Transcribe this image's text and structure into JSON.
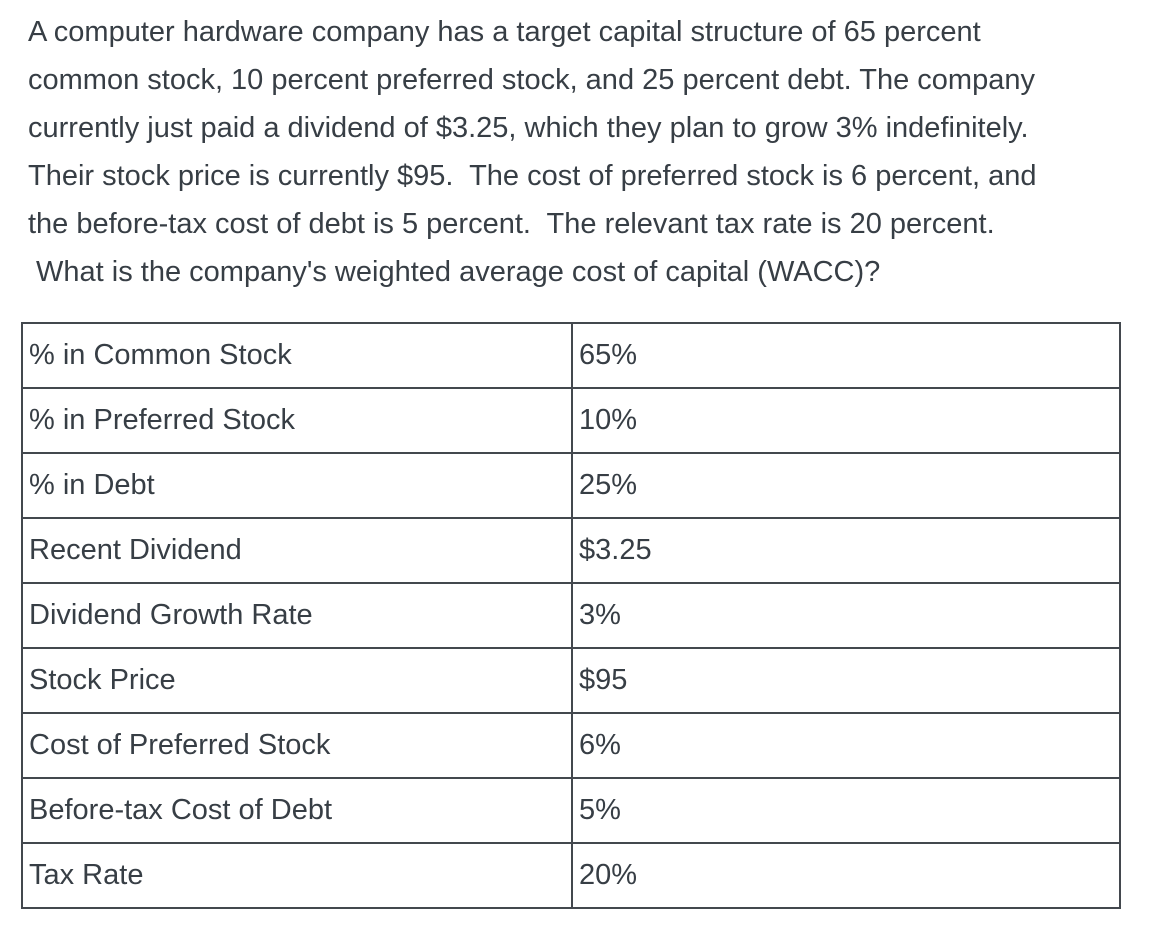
{
  "colors": {
    "text": "#373E45",
    "table_border": "#43484E",
    "background": "#FFFFFF"
  },
  "question": {
    "lines": [
      "A computer hardware company has a target capital structure of 65 percent",
      "common stock, 10 percent preferred stock, and 25 percent debt. The company",
      "currently just paid a dividend of $3.25, which they plan to grow 3% indefinitely.",
      "Their stock price is currently $95.  The cost of preferred stock is 6 percent, and",
      "the before-tax cost of debt is 5 percent.  The relevant tax rate is 20 percent.",
      " What is the company's weighted average cost of capital (WACC)?"
    ]
  },
  "table": {
    "rows": [
      {
        "label": "% in Common Stock",
        "value": "65%"
      },
      {
        "label": "% in Preferred Stock",
        "value": "10%"
      },
      {
        "label": "% in Debt",
        "value": "25%"
      },
      {
        "label": "Recent Dividend",
        "value": "$3.25"
      },
      {
        "label": "Dividend Growth Rate",
        "value": "3%"
      },
      {
        "label": "Stock Price",
        "value": "$95"
      },
      {
        "label": "Cost of Preferred Stock",
        "value": "6%"
      },
      {
        "label": "Before-tax Cost of Debt",
        "value": "5%"
      },
      {
        "label": "Tax Rate",
        "value": "20%"
      }
    ]
  }
}
